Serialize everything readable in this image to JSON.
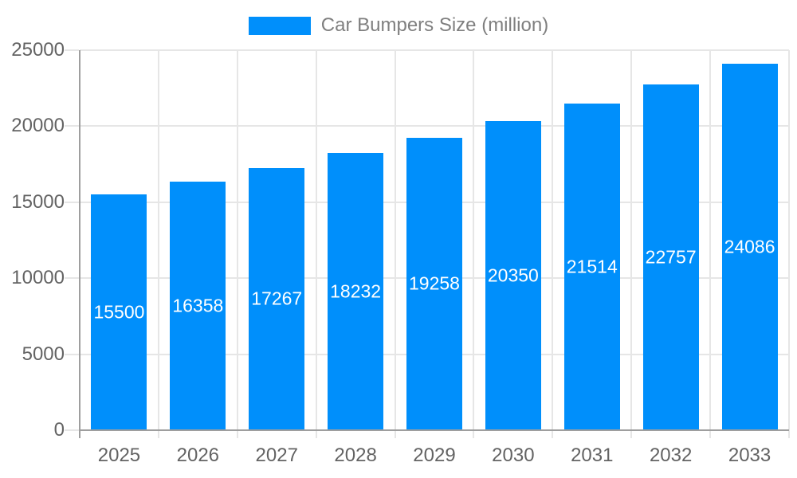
{
  "chart_data": {
    "type": "bar",
    "title": "Car Bumpers Size (million)",
    "categories": [
      "2025",
      "2026",
      "2027",
      "2028",
      "2029",
      "2030",
      "2031",
      "2032",
      "2033"
    ],
    "series": [
      {
        "name": "Car Bumpers Size (million)",
        "values": [
          15500,
          16358,
          17267,
          18232,
          19258,
          20350,
          21514,
          22757,
          24086
        ]
      }
    ],
    "value_labels": [
      "15500",
      "16358",
      "17267",
      "18232",
      "19258",
      "20350",
      "21514",
      "22757",
      "24086"
    ],
    "xlabel": "",
    "ylabel": "",
    "ylim": [
      0,
      25000
    ],
    "yticks": [
      0,
      5000,
      10000,
      15000,
      20000,
      25000
    ],
    "ytick_labels": [
      "0",
      "5000",
      "10000",
      "15000",
      "20000",
      "25000"
    ],
    "grid": true,
    "legend_position": "top-center",
    "value_label_position": "inside-center"
  },
  "colors": {
    "bar": "#008ffb",
    "gridline": "#e6e6e6",
    "axis_line": "#9e9e9e",
    "tick_label": "#636363",
    "legend_text": "#7f7f7f",
    "value_label": "#ffffff",
    "background": "#ffffff"
  }
}
